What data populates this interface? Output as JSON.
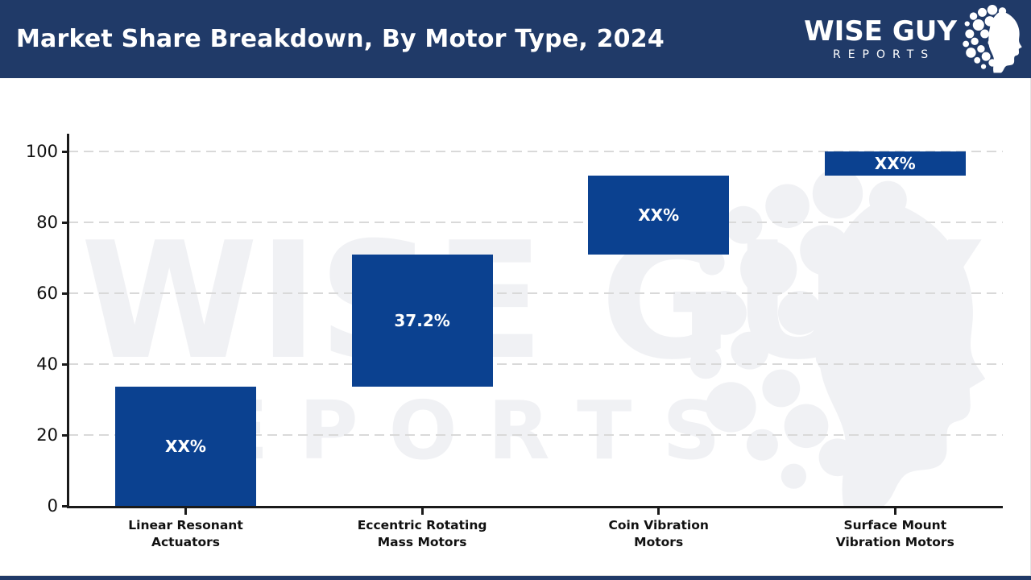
{
  "header": {
    "title": "Market Share Breakdown, By Motor Type, 2024",
    "background_color": "#203a68"
  },
  "logo": {
    "line1": "WISE GUY",
    "line2": "REPORTS"
  },
  "watermark": {
    "line1": "WISE GUY",
    "line2": "REPORTS"
  },
  "chart_data": {
    "type": "bar",
    "subtype": "stacked-waterfall",
    "title": "Market Share Breakdown, By Motor Type, 2024",
    "categories": [
      "Linear Resonant Actuators",
      "Eccentric Rotating Mass Motors",
      "Coin Vibration Motors",
      "Surface Mount Vibration Motors"
    ],
    "bars": [
      {
        "category": "Linear Resonant Actuators",
        "start": 0,
        "end": 33.6,
        "label": "XX%"
      },
      {
        "category": "Eccentric Rotating Mass Motors",
        "start": 33.6,
        "end": 70.8,
        "label": "37.2%",
        "value": 37.2
      },
      {
        "category": "Coin Vibration Motors",
        "start": 70.8,
        "end": 93.2,
        "label": "XX%"
      },
      {
        "category": "Surface Mount Vibration Motors",
        "start": 93.2,
        "end": 100,
        "label": "XX%"
      }
    ],
    "yticks": [
      0,
      20,
      40,
      60,
      80,
      100
    ],
    "ytick_labels": [
      "0",
      "20",
      "40",
      "60",
      "80",
      "100"
    ],
    "ylim": [
      0,
      105
    ],
    "xlabel": "",
    "ylabel": "",
    "bar_color": "#0b4190",
    "grid": "horizontal-dashed",
    "gridline_color": "#d9d9d9",
    "legend": "none"
  }
}
